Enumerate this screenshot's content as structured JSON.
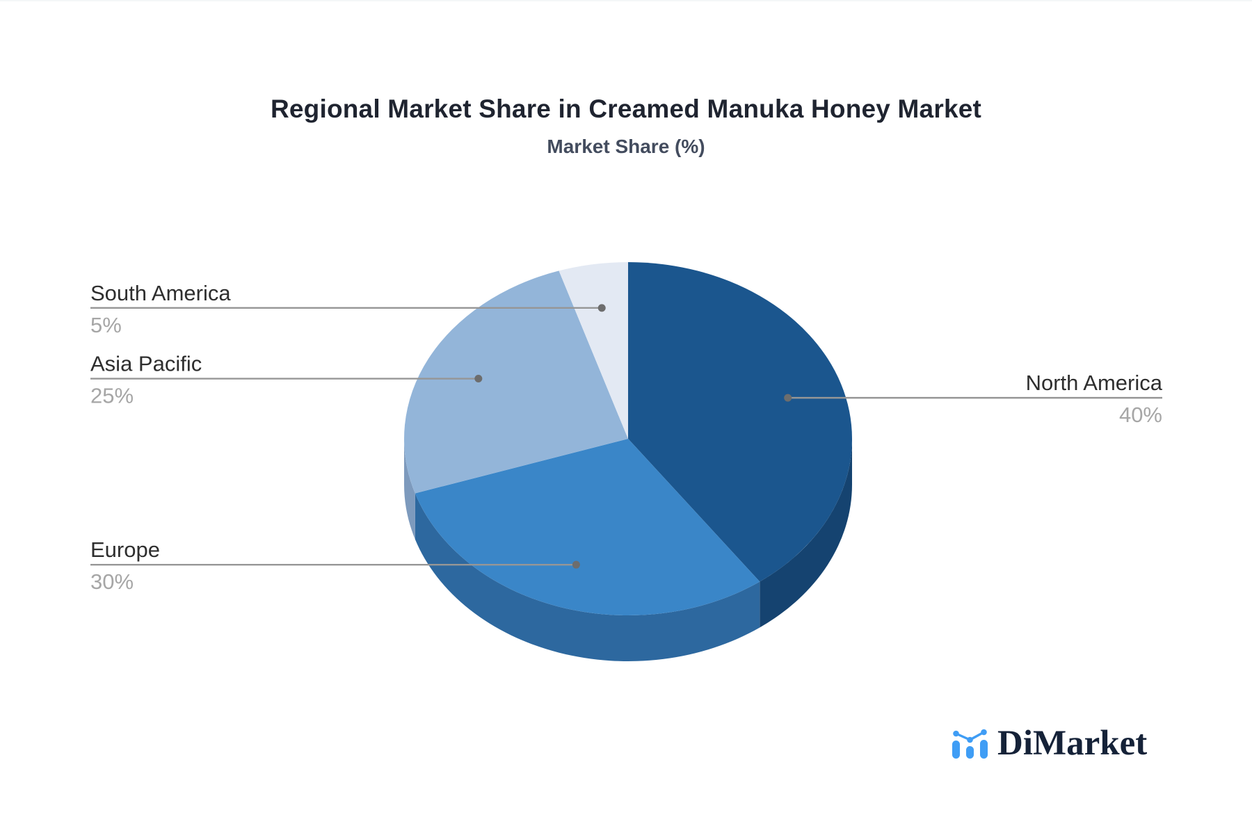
{
  "header": {
    "title": "Regional Market Share in Creamed Manuka Honey Market",
    "subtitle": "Market Share (%)"
  },
  "chart_data": {
    "type": "pie",
    "title": "Regional Market Share in Creamed Manuka Honey Market",
    "subtitle": "Market Share (%)",
    "unit": "%",
    "effect": "3d",
    "start_angle_deg": 0,
    "direction": "clockwise",
    "legend_position": "callout-labels",
    "categories": [
      "North America",
      "Europe",
      "Asia Pacific",
      "South America"
    ],
    "values": [
      40,
      30,
      25,
      5
    ],
    "slices": [
      {
        "label": "North America",
        "value": 40,
        "display": "40%",
        "color": "#1b568e",
        "side_color": "#154370",
        "label_side": "right"
      },
      {
        "label": "Europe",
        "value": 30,
        "display": "30%",
        "color": "#3a86c8",
        "side_color": "#2d689f",
        "label_side": "left"
      },
      {
        "label": "Asia Pacific",
        "value": 25,
        "display": "25%",
        "color": "#93b5d9",
        "side_color": "#7d9abd",
        "label_side": "left"
      },
      {
        "label": "South America",
        "value": 5,
        "display": "5%",
        "color": "#e3e9f3",
        "side_color": "#c5d2e3",
        "label_side": "left"
      }
    ]
  },
  "callout_style": {
    "line_color": "#969696",
    "dot_color": "#6d6d6d",
    "name_color": "#2e2e2e",
    "value_color": "#a6a6a6"
  },
  "logo": {
    "text": "DiMarket",
    "icon": "bar-chart-trend-icon",
    "icon_color": "#3f9df5",
    "text_color": "#152238"
  }
}
